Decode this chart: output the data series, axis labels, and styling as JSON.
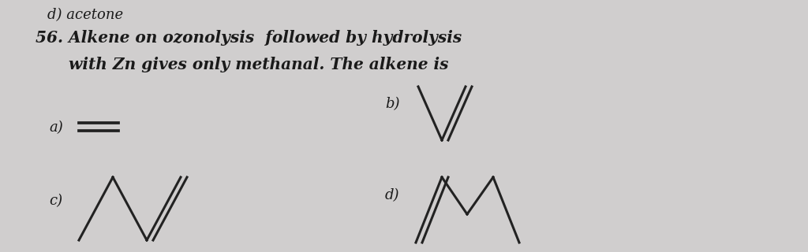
{
  "bg_color": "#d0cece",
  "text_color": "#1a1a1a",
  "line_color": "#222222",
  "top_text": "d) acetone",
  "q_line1": "56. Alkene on ozonolysis  followed by hydrolysis",
  "q_line2": "      with Zn gives only methanal. The alkene is",
  "label_a": "a)",
  "label_b": "b)",
  "label_c": "c)",
  "label_d": "d)",
  "figsize": [
    10.24,
    3.2
  ],
  "dpi": 100
}
